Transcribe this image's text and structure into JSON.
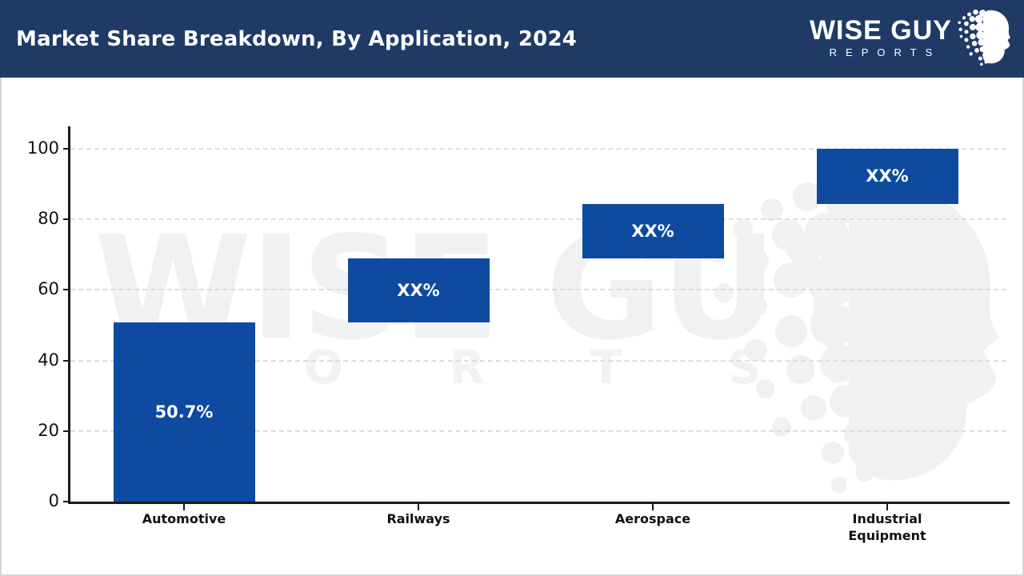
{
  "header": {
    "title": "Market Share Breakdown, By Application, 2024"
  },
  "logo": {
    "line1": "WISE GUY",
    "line2": "REPORTS"
  },
  "watermark": {
    "line1": "WISE GUY",
    "line2": "P O R T S"
  },
  "chart_data": {
    "type": "bar",
    "subtype": "waterfall (floating segment bars)",
    "title": "Market Share Breakdown, By Application, 2024",
    "categories": [
      "Automotive",
      "Railways",
      "Aerospace",
      "Industrial Equipment"
    ],
    "segments": [
      {
        "category": "Automotive",
        "start": 0,
        "end": 50.7,
        "label": "50.7%"
      },
      {
        "category": "Railways",
        "start": 50.7,
        "end": 69,
        "label": "XX%"
      },
      {
        "category": "Aerospace",
        "start": 69,
        "end": 84.4,
        "label": "XX%"
      },
      {
        "category": "Industrial Equipment",
        "start": 84.4,
        "end": 100,
        "label": "XX%"
      }
    ],
    "xlabel": "",
    "ylabel": "",
    "ylim": [
      0,
      100
    ],
    "yticks": [
      0,
      20,
      40,
      60,
      80,
      100
    ],
    "grid": "horizontal dashed, at 20/40/60/80/100",
    "legend": "none",
    "colors": {
      "bar": "#0d4aa0",
      "header_bg": "#203a66",
      "gridline": "#dcdcdc",
      "axis": "#1a1a1a",
      "watermark": "#f1f1f3"
    }
  }
}
